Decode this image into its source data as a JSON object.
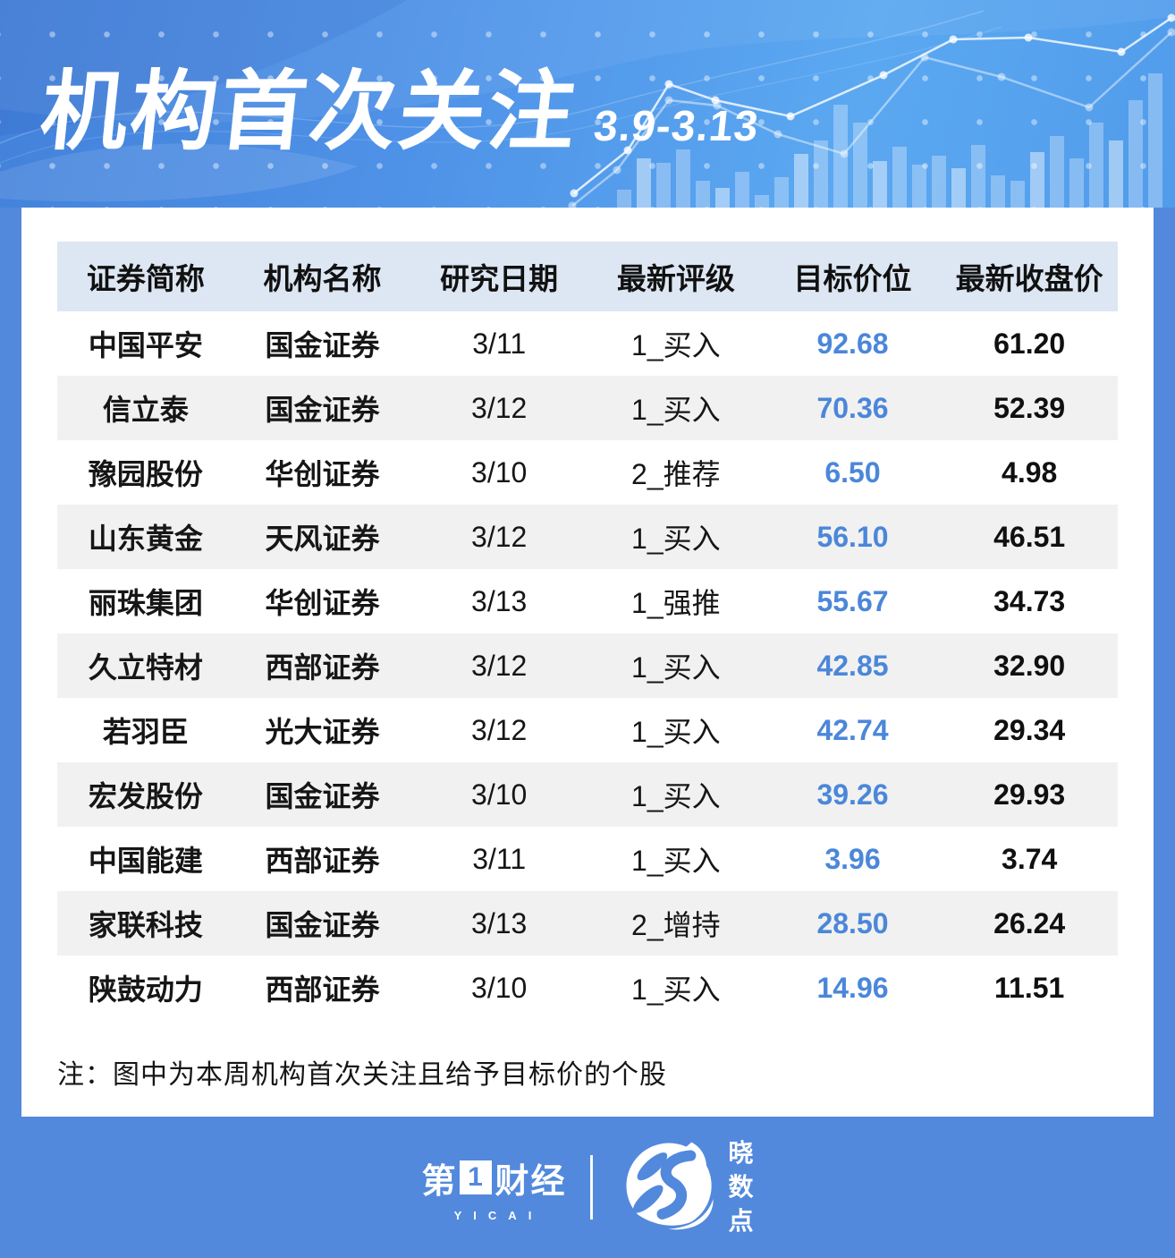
{
  "header": {
    "title": "机构首次关注",
    "date_range": "3.9-3.13"
  },
  "chart_data": {
    "type": "table",
    "title": "机构首次关注",
    "subtitle": "3.9-3.13",
    "columns": [
      "证券简称",
      "机构名称",
      "研究日期",
      "最新评级",
      "目标价位",
      "最新收盘价"
    ],
    "rows": [
      [
        "中国平安",
        "国金证券",
        "3/11",
        "1_买入",
        "92.68",
        "61.20"
      ],
      [
        "信立泰",
        "国金证券",
        "3/12",
        "1_买入",
        "70.36",
        "52.39"
      ],
      [
        "豫园股份",
        "华创证券",
        "3/10",
        "2_推荐",
        "6.50",
        "4.98"
      ],
      [
        "山东黄金",
        "天风证券",
        "3/12",
        "1_买入",
        "56.10",
        "46.51"
      ],
      [
        "丽珠集团",
        "华创证券",
        "3/13",
        "1_强推",
        "55.67",
        "34.73"
      ],
      [
        "久立特材",
        "西部证券",
        "3/12",
        "1_买入",
        "42.85",
        "32.90"
      ],
      [
        "若羽臣",
        "光大证券",
        "3/12",
        "1_买入",
        "42.74",
        "29.34"
      ],
      [
        "宏发股份",
        "国金证券",
        "3/10",
        "1_买入",
        "39.26",
        "29.93"
      ],
      [
        "中国能建",
        "西部证券",
        "3/11",
        "1_买入",
        "3.96",
        "3.74"
      ],
      [
        "家联科技",
        "国金证券",
        "3/13",
        "2_增持",
        "28.50",
        "26.24"
      ],
      [
        "陕鼓动力",
        "西部证券",
        "3/10",
        "1_买入",
        "14.96",
        "11.51"
      ]
    ],
    "note": "注：图中为本周机构首次关注且给予目标价的个股",
    "legend_position": "none",
    "grid": false
  },
  "note": "注：图中为本周机构首次关注且给予目标价的个股",
  "footer": {
    "yicai_pre": "第",
    "yicai_one": "1",
    "yicai_post": "财经",
    "yicai_latin": "YICAI",
    "xsd_chars": [
      "晓",
      "数",
      "点"
    ]
  },
  "colors": {
    "frame_blue": "#5289dc",
    "header_gradient_start": "#4381da",
    "header_gradient_end": "#5ba8f1",
    "table_header_bg": "#dde7f3",
    "row_stripe": "#f1f1f1",
    "target_price_blue": "#4b87d9",
    "text_black": "#161616"
  }
}
